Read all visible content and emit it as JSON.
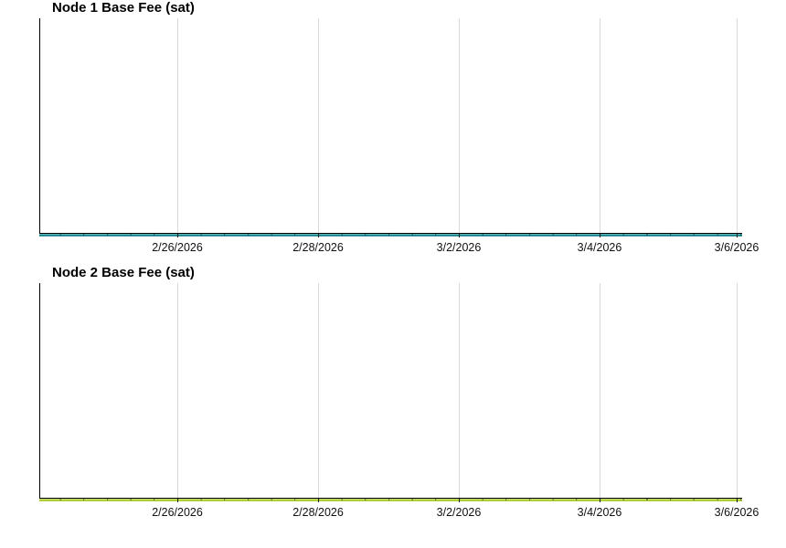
{
  "page": {
    "background": "#ffffff"
  },
  "charts": [
    {
      "title": "Node 1 Base Fee (sat)",
      "x_tick_labels": [
        "2/26/2026",
        "2/28/2026",
        "3/2/2026",
        "3/4/2026",
        "3/6/2026"
      ],
      "line_color": "#117e86",
      "line_color_light": "#9ad9dc",
      "axis_color": "#000000",
      "gridline_color": "#d9d9d9",
      "baseline_value": 0
    },
    {
      "title": "Node 2 Base Fee (sat)",
      "x_tick_labels": [
        "2/26/2026",
        "2/28/2026",
        "3/2/2026",
        "3/4/2026",
        "3/6/2026"
      ],
      "line_color": "#a8c71f",
      "line_color_light": "#dcedb0",
      "axis_color": "#000000",
      "gridline_color": "#d9d9d9",
      "baseline_value": 0
    }
  ],
  "chart_data": [
    {
      "type": "line",
      "title": "Node 1 Base Fee (sat)",
      "xlabel": "",
      "ylabel": "",
      "x": [
        "2/26/2026",
        "2/28/2026",
        "3/2/2026",
        "3/4/2026",
        "3/6/2026"
      ],
      "series": [
        {
          "name": "Node 1 Base Fee (sat)",
          "color": "#117e86",
          "values": [
            0,
            0,
            0,
            0,
            0
          ]
        }
      ],
      "y_axis_labels": "none",
      "legend_position": "none",
      "grid": "vertical gridlines at each date tick",
      "note": "flat line at ~0 riding along the x-axis baseline across the whole date range"
    },
    {
      "type": "line",
      "title": "Node 2 Base Fee (sat)",
      "xlabel": "",
      "ylabel": "",
      "x": [
        "2/26/2026",
        "2/28/2026",
        "3/2/2026",
        "3/4/2026",
        "3/6/2026"
      ],
      "series": [
        {
          "name": "Node 2 Base Fee (sat)",
          "color": "#a8c71f",
          "values": [
            0,
            0,
            0,
            0,
            0
          ]
        }
      ],
      "y_axis_labels": "none",
      "legend_position": "none",
      "grid": "vertical gridlines at each date tick",
      "note": "flat line at ~0 riding along the x-axis baseline across the whole date range"
    }
  ]
}
